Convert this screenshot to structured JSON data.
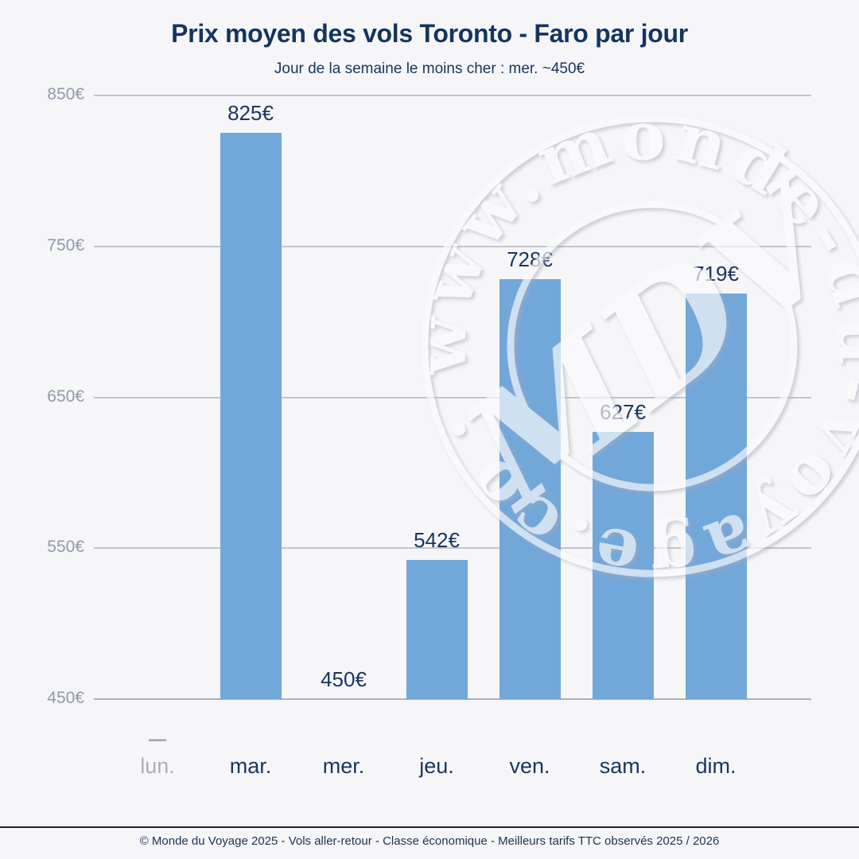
{
  "title": "Prix moyen des vols Toronto - Faro par jour",
  "subtitle": "Jour de la semaine le moins cher : mer. ~450€",
  "watermark": {
    "circle_text": "· www.monde-du-voyage.com",
    "center_text": "MDV"
  },
  "footer": {
    "text": "© Monde du Voyage 2025 - Vols aller-retour - Classe économique - Meilleurs tarifs TTC observés 2025 / 2026"
  },
  "chart_data": {
    "type": "bar",
    "title": "Prix moyen des vols Toronto - Faro par jour",
    "subtitle": "Jour de la semaine le moins cher : mer. ~450€",
    "categories": [
      "lun.",
      "mar.",
      "mer.",
      "jeu.",
      "ven.",
      "sam.",
      "dim."
    ],
    "values": [
      null,
      825,
      450,
      542,
      728,
      627,
      719
    ],
    "value_labels": [
      "",
      "825€",
      "450€",
      "542€",
      "728€",
      "627€",
      "719€"
    ],
    "no_data_marker": "–",
    "xlabel": "",
    "ylabel": "",
    "ylim": [
      450,
      850
    ],
    "y_ticks": [
      {
        "value": 850,
        "label": "850€"
      },
      {
        "value": 750,
        "label": "750€"
      },
      {
        "value": 650,
        "label": "650€"
      },
      {
        "value": 550,
        "label": "550€"
      },
      {
        "value": 450,
        "label": "450€",
        "axis": true
      }
    ],
    "grid": true,
    "legend": false,
    "bar_color": "#72a7da"
  },
  "colors": {
    "background": "#f6f6f8",
    "navy": "#1a3560",
    "tick_gray": "#9199a9",
    "muted_day": "#a9aeb9",
    "gridline": "#c2c5d0",
    "axis_line": "#aeb2bd",
    "bar": "#72a7da",
    "footer_line": "#15243b"
  }
}
